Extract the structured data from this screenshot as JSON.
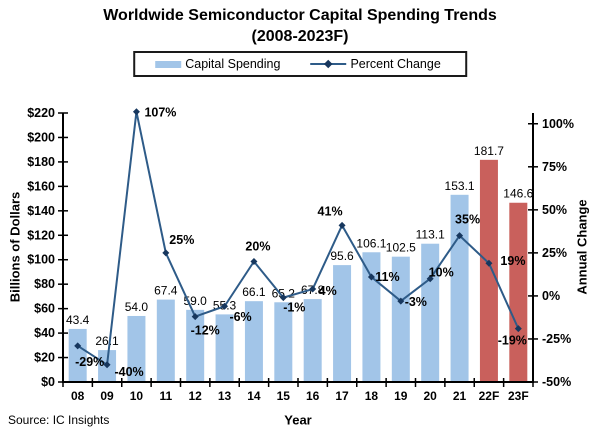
{
  "page": {
    "source": "Source: IC Insights"
  },
  "chart_data": {
    "type": "combo-bar-line",
    "title": "Worldwide Semiconductor Capital Spending Trends",
    "subtitle": "(2008-2023F)",
    "categories": [
      "08",
      "09",
      "10",
      "11",
      "12",
      "13",
      "14",
      "15",
      "16",
      "17",
      "18",
      "19",
      "20",
      "21",
      "22F",
      "23F"
    ],
    "series": [
      {
        "name": "Capital Spending",
        "type": "bar",
        "axis": "left",
        "values": [
          43.4,
          26.1,
          54.0,
          67.4,
          59.0,
          55.3,
          66.1,
          65.2,
          67.8,
          95.6,
          106.1,
          102.5,
          113.1,
          153.1,
          181.7,
          146.6
        ],
        "value_labels": [
          "43.4",
          "26.1",
          "54.0",
          "67.4",
          "59.0",
          "55.3",
          "66.1",
          "65.2",
          "67.8",
          "95.6",
          "106.1",
          "102.5",
          "113.1",
          "153.1",
          "181.7",
          "146.6"
        ],
        "color_default": "#A2C5E8",
        "color_forecast": "#C9605C",
        "forecast_indices": [
          14,
          15
        ]
      },
      {
        "name": "Percent Change",
        "type": "line",
        "axis": "right",
        "values": [
          -29,
          -40,
          107,
          25,
          -12,
          -6,
          20,
          -1,
          4,
          41,
          11,
          -3,
          10,
          35,
          19,
          -19
        ],
        "point_labels": [
          "-29%",
          "-40%",
          "107%",
          "25%",
          "-12%",
          "-6%",
          "20%",
          "-1%",
          "4%",
          "41%",
          "11%",
          "-3%",
          "10%",
          "35%",
          "19%",
          "-19%"
        ],
        "color": "#2E5B88",
        "marker_color": "#17375E",
        "label_offsets": [
          [
            12,
            20
          ],
          [
            22,
            11
          ],
          [
            24,
            5
          ],
          [
            16,
            -9
          ],
          [
            10,
            18
          ],
          [
            16,
            15
          ],
          [
            4,
            -11
          ],
          [
            11,
            14
          ],
          [
            15,
            6
          ],
          [
            -12,
            -10
          ],
          [
            16,
            4
          ],
          [
            15,
            5
          ],
          [
            11,
            -2
          ],
          [
            8,
            -12
          ],
          [
            24,
            2
          ],
          [
            -6,
            16
          ]
        ]
      }
    ],
    "left_axis": {
      "label": "Billions of Dollars",
      "min": 0,
      "max": 220,
      "step": 20,
      "prefix": "$",
      "suffix": ""
    },
    "right_axis": {
      "label": "Annual Change",
      "min": -50,
      "max": 106.25,
      "tick_max": 100,
      "step": 25,
      "prefix": "",
      "suffix": "%"
    },
    "xlabel": "Year",
    "legend_position": "top",
    "grid": false,
    "text_color": "#000000"
  }
}
